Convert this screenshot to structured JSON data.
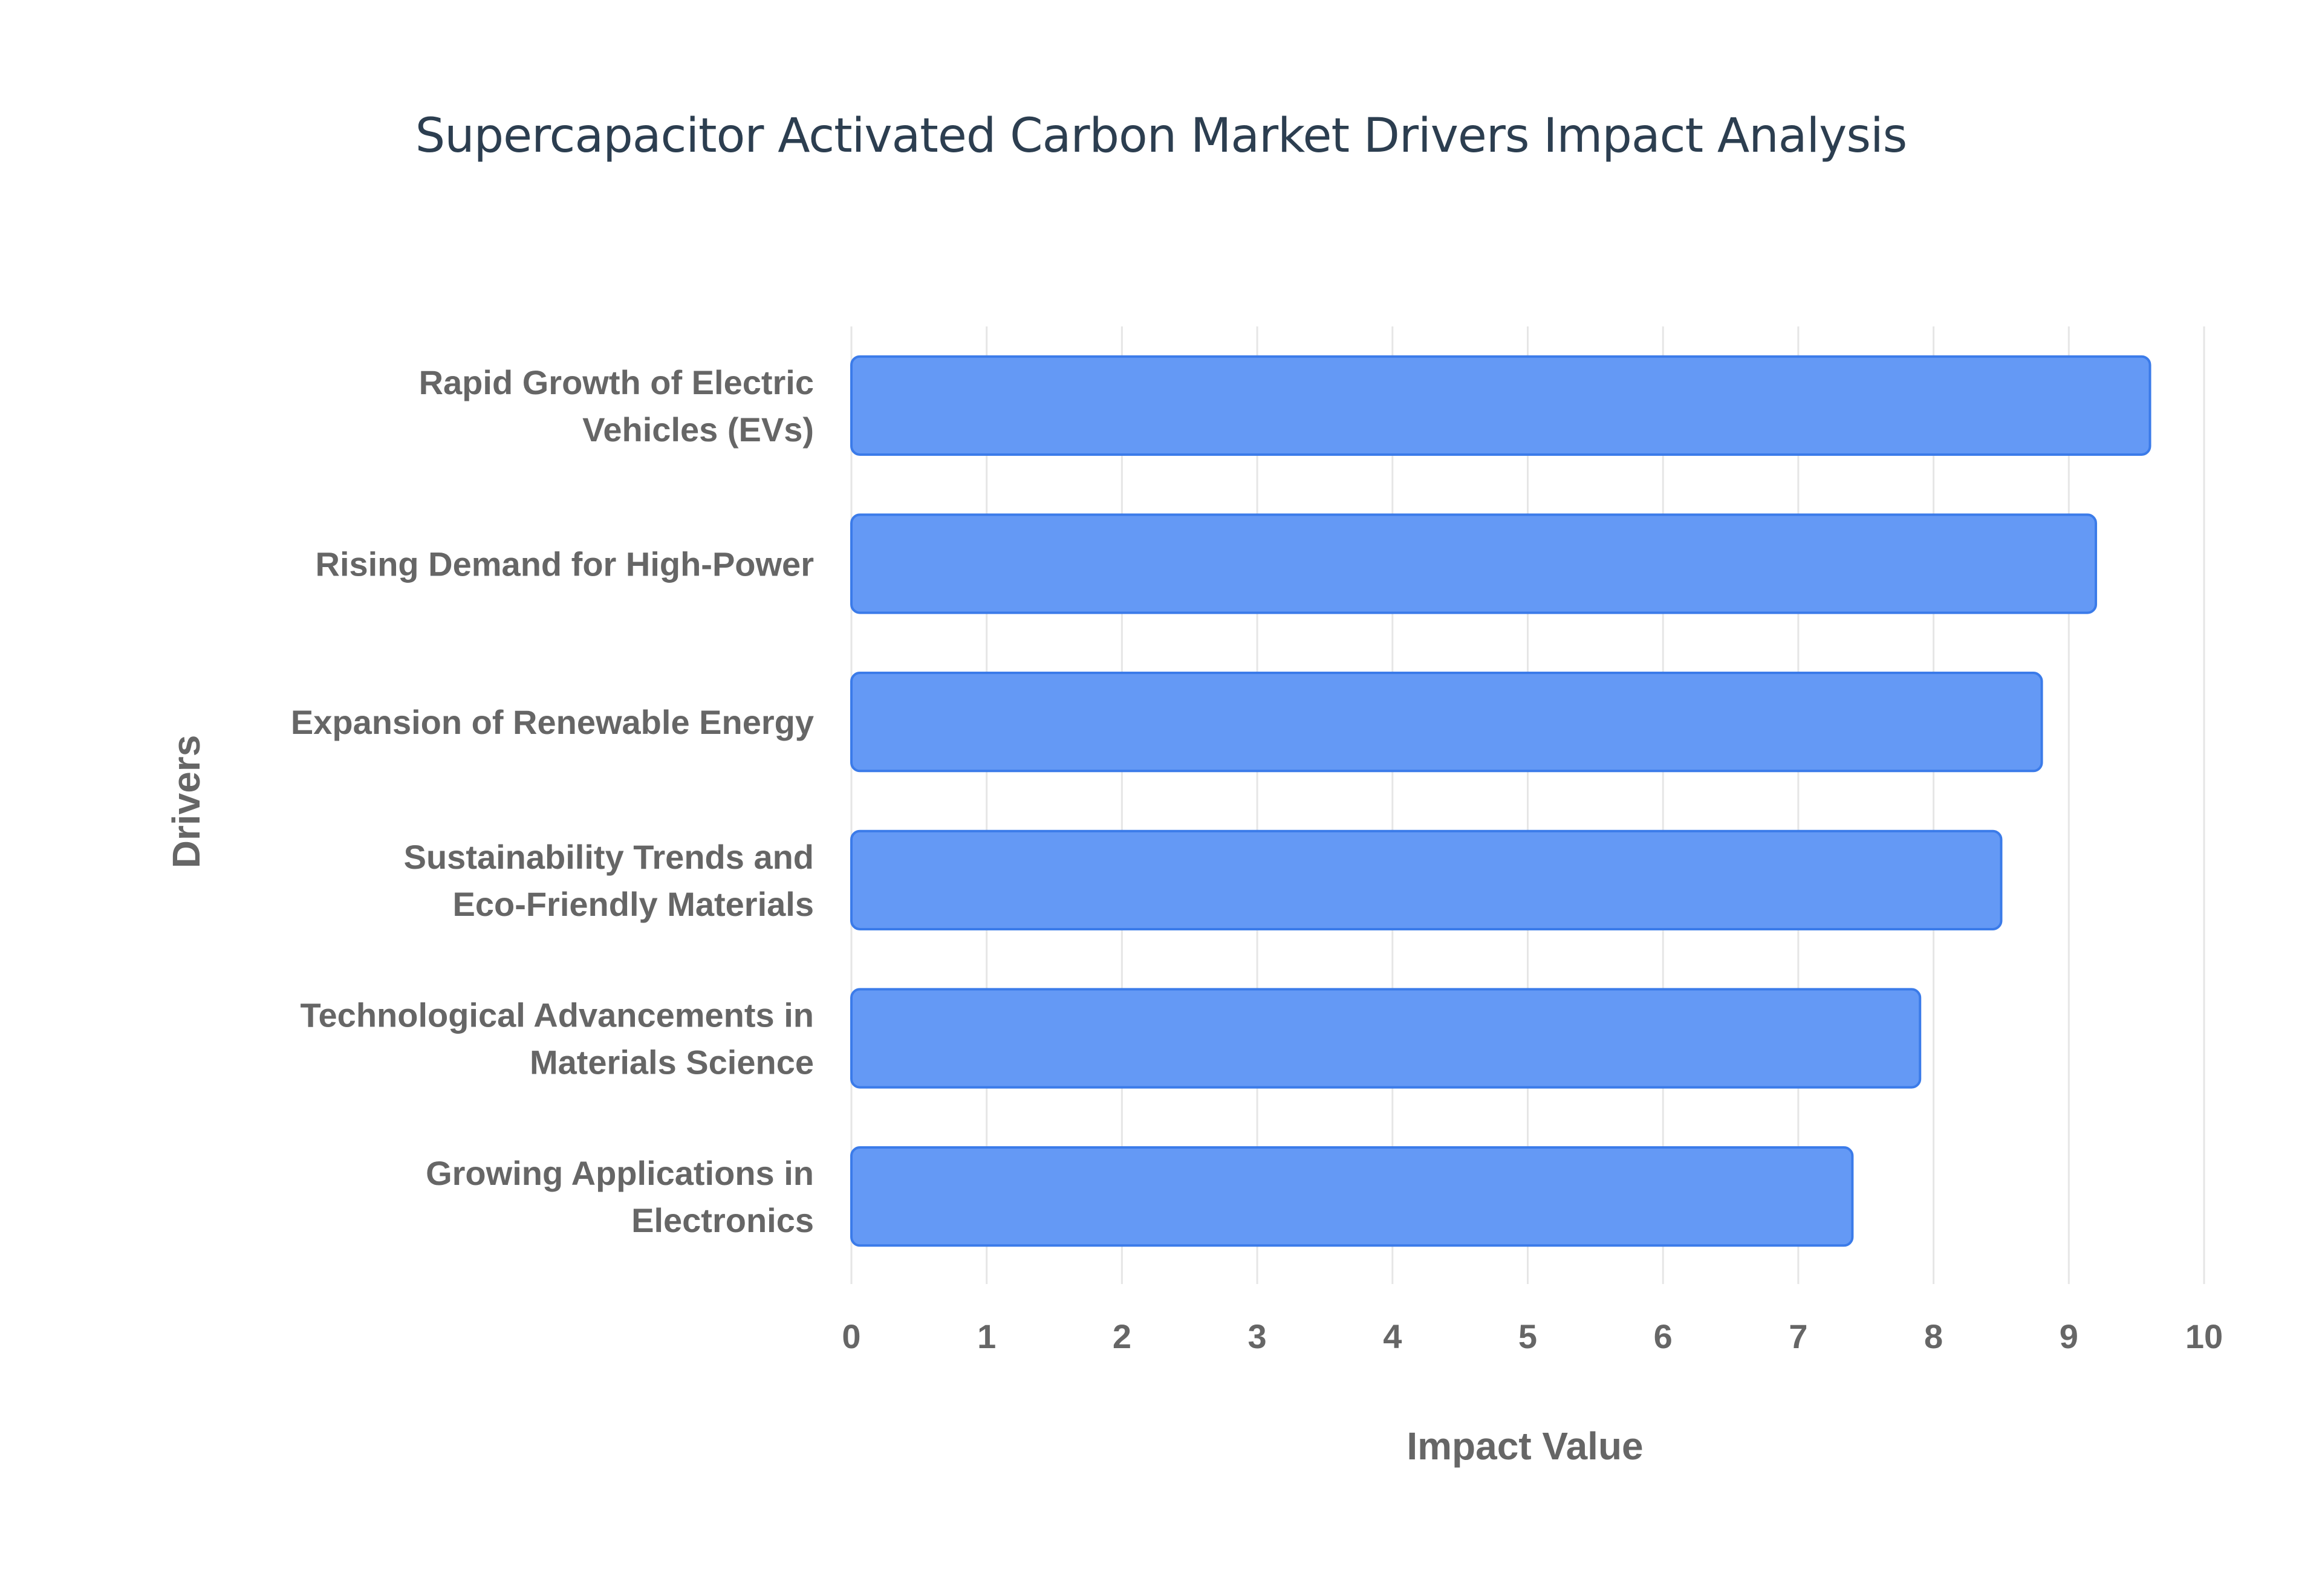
{
  "chart_data": {
    "type": "bar",
    "orientation": "horizontal",
    "title": "Supercapacitor Activated Carbon Market Drivers Impact Analysis",
    "xlabel": "Impact Value",
    "ylabel": "Drivers",
    "xlim": [
      0,
      10
    ],
    "x_ticks": [
      "0",
      "1",
      "2",
      "3",
      "4",
      "5",
      "6",
      "7",
      "8",
      "9",
      "10"
    ],
    "grid": "vertical",
    "categories": [
      [
        "Rapid Growth of Electric",
        "Vehicles (EVs)"
      ],
      [
        "Rising Demand for High-Power"
      ],
      [
        "Expansion of Renewable Energy"
      ],
      [
        "Sustainability Trends and",
        "Eco-Friendly Materials"
      ],
      [
        "Technological Advancements in",
        "Materials Science"
      ],
      [
        "Growing Applications in",
        "Electronics"
      ]
    ],
    "values": [
      9.6,
      9.2,
      8.8,
      8.5,
      7.9,
      7.4
    ],
    "colors": {
      "bar_fill": "#6499f5",
      "bar_stroke": "#3b7be9",
      "grid": "#e6e6e6",
      "label": "#666666",
      "title": "#2c3e50"
    }
  }
}
